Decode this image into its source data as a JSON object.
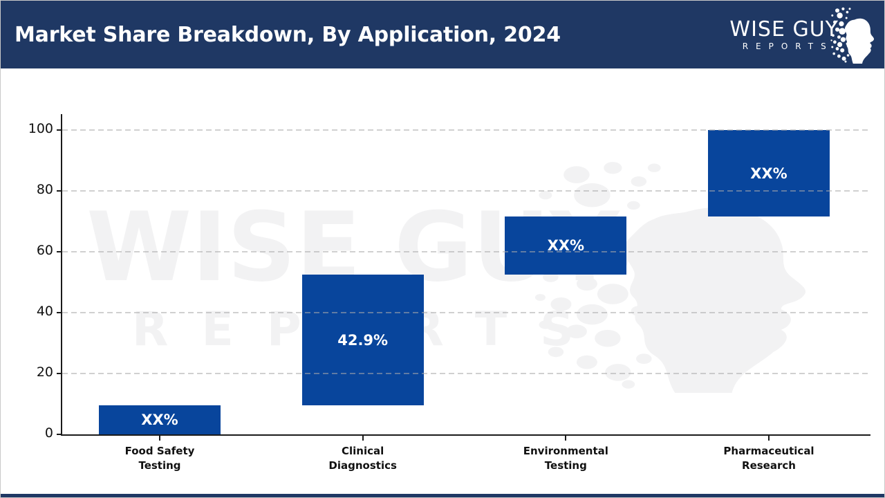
{
  "header": {
    "title": "Market Share Breakdown, By Application, 2024",
    "logo": {
      "line1": "WISE GUY",
      "line2": "REPORTS"
    }
  },
  "watermark": {
    "line1": "WISE GUY",
    "line2": "REPORTS"
  },
  "chart_data": {
    "type": "bar",
    "subtype": "waterfall",
    "title": "Market Share Breakdown, By Application, 2024",
    "xlabel": "",
    "ylabel": "",
    "ylim": [
      0,
      100
    ],
    "yticks": [
      0,
      20,
      40,
      60,
      80,
      100
    ],
    "grid": {
      "axis": "y",
      "style": "dashed",
      "on": true
    },
    "legend": "none",
    "unit": "percent",
    "categories": [
      [
        "Food Safety",
        "Testing"
      ],
      [
        "Clinical",
        "Diagnostics"
      ],
      [
        "Environmental",
        "Testing"
      ],
      [
        "Pharmaceutical",
        "Research"
      ]
    ],
    "series": [
      {
        "name": "Food Safety Testing",
        "start": 0,
        "end": 9.5,
        "value": 9.5,
        "label": "XX%"
      },
      {
        "name": "Clinical Diagnostics",
        "start": 9.5,
        "end": 52.4,
        "value": 42.9,
        "label": "42.9%"
      },
      {
        "name": "Environmental Testing",
        "start": 52.4,
        "end": 71.5,
        "value": 19.1,
        "label": "XX%"
      },
      {
        "name": "Pharmaceutical Research",
        "start": 71.5,
        "end": 100,
        "value": 28.5,
        "label": "XX%"
      }
    ]
  },
  "colors": {
    "header_bg": "#1f3864",
    "bar": "#08459c",
    "bar_label": "#ffffff",
    "axis": "#1a1a1a",
    "gridline": "#c8c8c8",
    "watermark": "#f2f2f3",
    "tick_label": "#111111"
  }
}
